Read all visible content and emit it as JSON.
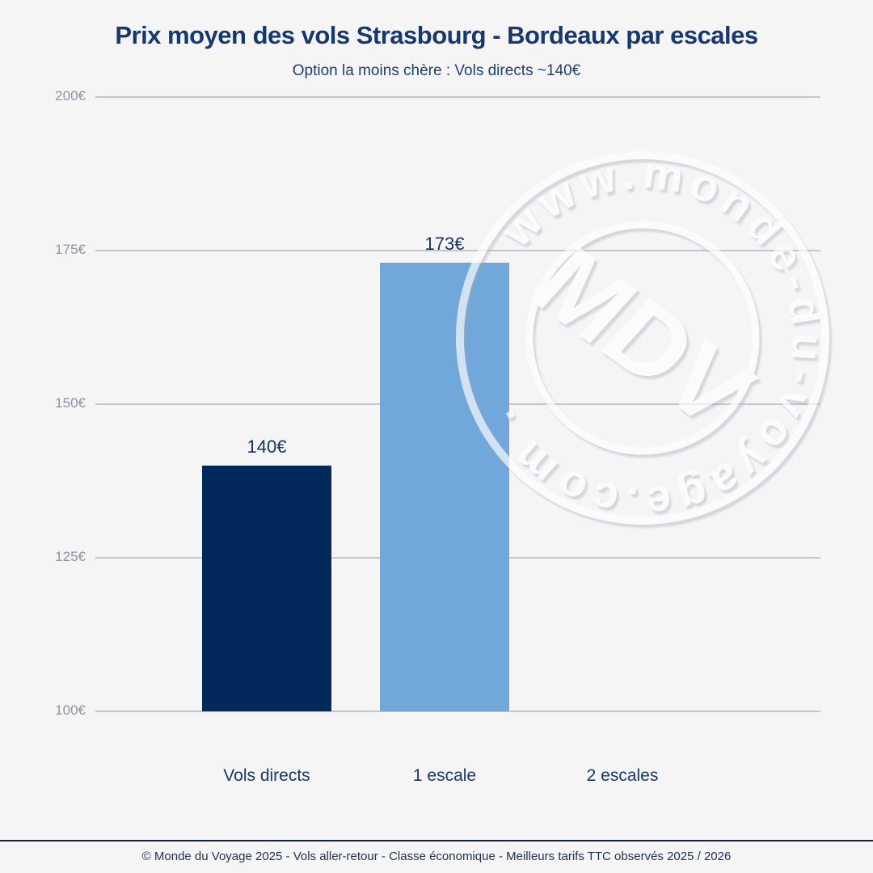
{
  "title": "Prix moyen des vols Strasbourg - Bordeaux par escales",
  "subtitle": "Option la moins chère : Vols directs ~140€",
  "watermark": {
    "url_text": "www.monde-du-voyage.com .",
    "center_text": "MDV"
  },
  "footer": {
    "text": "© Monde du Voyage 2025 - Vols aller-retour - Classe économique - Meilleurs tarifs TTC observés 2025 / 2026"
  },
  "colors": {
    "background": "#f5f5f6",
    "title": "#17386e",
    "subtitle": "#1d4070",
    "bar_dark_navy": "#012a5b",
    "bar_light_blue": "#71a7da",
    "gridline": "#c4c6cb",
    "ytick": "#8d93a1",
    "value_label": "#16335e",
    "footer_line": "#13233b",
    "watermark_fill": "#ffffff"
  },
  "chart_data": {
    "type": "bar",
    "title": "Prix moyen des vols Strasbourg - Bordeaux par escales",
    "subtitle": "Option la moins chère : Vols directs ~140€",
    "categories": [
      "Vols directs",
      "1 escale",
      "2 escales"
    ],
    "values": [
      140,
      173,
      null
    ],
    "value_labels": [
      "140€",
      "173€",
      ""
    ],
    "bar_colors": [
      "#012a5b",
      "#71a7da",
      null
    ],
    "xlabel": "",
    "ylabel": "",
    "ylim": [
      100,
      200
    ],
    "ytick_values": [
      200,
      175,
      150,
      125,
      100
    ],
    "ytick_labels": [
      "200€",
      "175€",
      "150€",
      "125€",
      "100€"
    ],
    "grid": true,
    "legend": false,
    "currency": "€"
  }
}
